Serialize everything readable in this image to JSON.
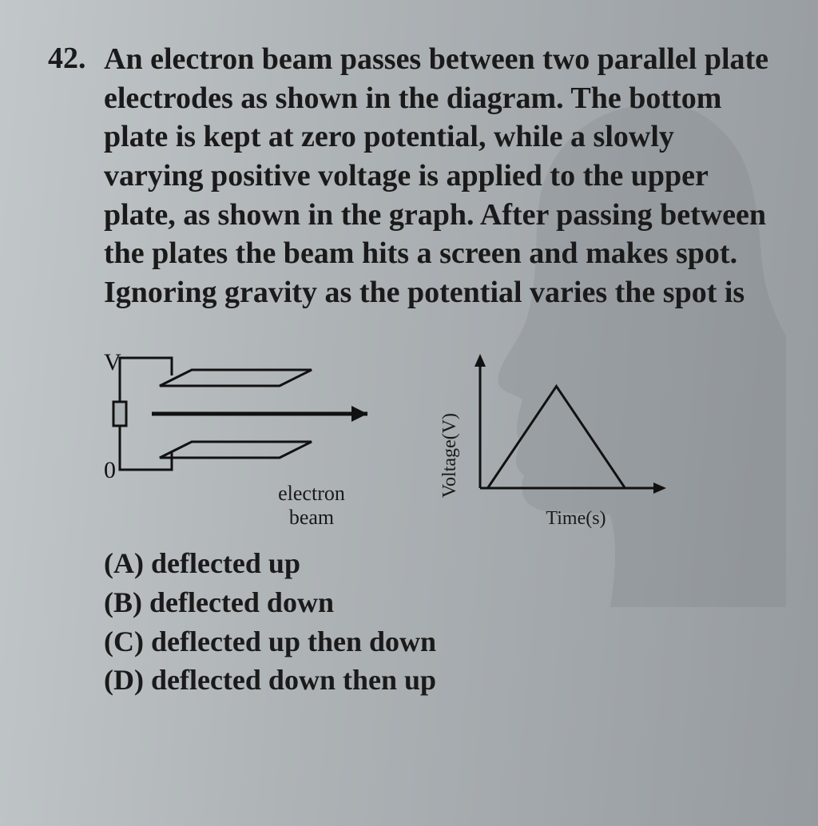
{
  "question": {
    "number": "42.",
    "text": "An electron beam passes between two parallel plate electrodes as shown in the diagram. The bottom plate is kept at zero potential, while a slowly varying positive voltage is applied to the upper plate, as shown in the graph. After passing between the plates the beam hits a screen and makes spot. Ignoring gravity as the potential varies the spot is"
  },
  "circuit_diagram": {
    "type": "diagram",
    "top_label": "V",
    "bottom_label": "0",
    "beam_label": "electron\nbeam",
    "line_color": "#111111",
    "line_width": 3,
    "background_color": "transparent",
    "arrow_color": "#111111",
    "plate_fill": "none"
  },
  "voltage_graph": {
    "type": "line",
    "ylabel": "Voltage(V)",
    "xlabel": "Time(s)",
    "label_fontsize": 24,
    "axis_color": "#111111",
    "axis_width": 3,
    "series_color": "#111111",
    "series_width": 3,
    "points_x": [
      0.05,
      0.5,
      0.95
    ],
    "points_y": [
      0.0,
      0.85,
      0.0
    ],
    "xlim": [
      0,
      1.1
    ],
    "ylim": [
      0,
      1.0
    ],
    "background_color": "transparent"
  },
  "options": {
    "A": {
      "letter": "(A)",
      "text": "deflected up"
    },
    "B": {
      "letter": "(B)",
      "text": "deflected down"
    },
    "C": {
      "letter": "(C)",
      "text": "deflected up then down"
    },
    "D": {
      "letter": "(D)",
      "text": "deflected down then up"
    }
  },
  "colors": {
    "text": "#1a1a1a",
    "page_bg_left": "#c2c7ca",
    "page_bg_right": "#969ba0",
    "watermark": "#6d7377"
  },
  "typography": {
    "question_fontsize": 38,
    "option_fontsize": 36,
    "font_family": "Georgia, 'Times New Roman', serif",
    "font_weight": "bold"
  }
}
